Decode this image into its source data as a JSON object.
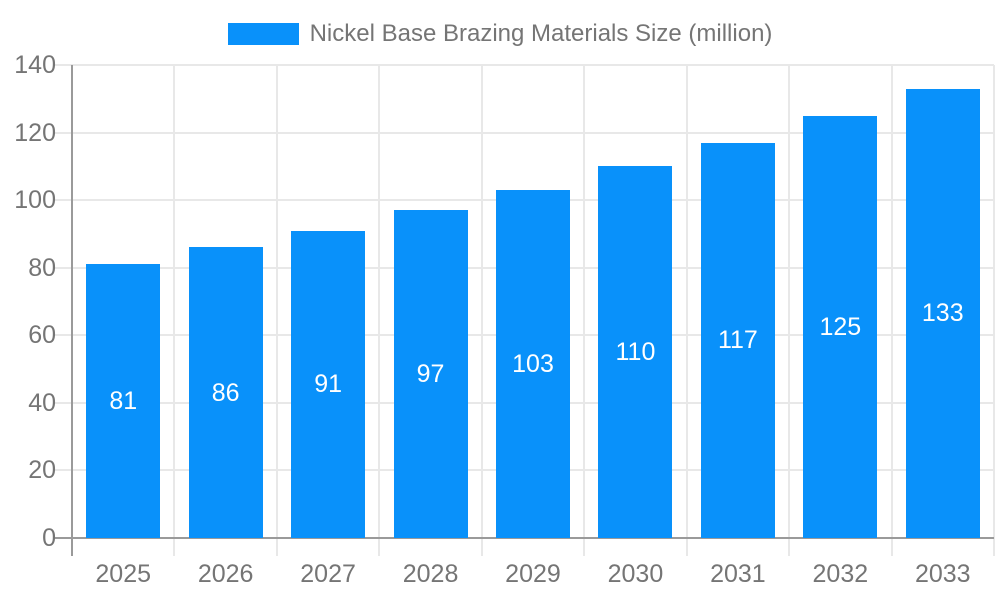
{
  "legend": {
    "label": "Nickel Base Brazing Materials Size (million)",
    "swatch_color": "#0991fa"
  },
  "chart_data": {
    "type": "bar",
    "title": "Nickel Base Brazing Materials Size (million)",
    "categories": [
      "2025",
      "2026",
      "2027",
      "2028",
      "2029",
      "2030",
      "2031",
      "2032",
      "2033"
    ],
    "values": [
      81,
      86,
      91,
      97,
      103,
      110,
      117,
      125,
      133
    ],
    "xlabel": "",
    "ylabel": "",
    "ylim": [
      0,
      140
    ],
    "ytick_step": 20,
    "ytick_labels": [
      "0",
      "20",
      "40",
      "60",
      "80",
      "100",
      "120",
      "140"
    ],
    "grid": true,
    "legend_position": "top",
    "value_labels": "inside-center",
    "colors": {
      "bar": "#0991fa",
      "value_label": "#ffffff",
      "axis": "#9a9a9a",
      "grid": "#e8e8e8",
      "text": "#757575"
    }
  }
}
